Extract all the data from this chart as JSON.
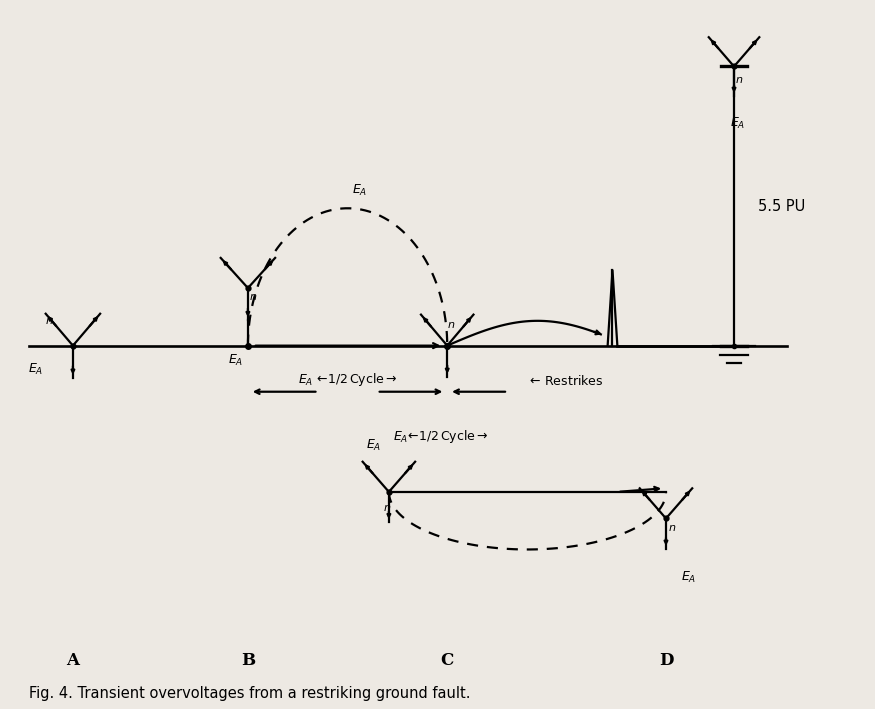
{
  "bg_color": "#ede9e3",
  "fig_width": 8.75,
  "fig_height": 7.09,
  "caption": "Fig. 4. Transient overvoltages from a restriking ground fault.",
  "labels_bottom": [
    [
      "A",
      0.75
    ],
    [
      "B",
      2.55
    ],
    [
      "C",
      4.6
    ],
    [
      "D",
      6.85
    ]
  ],
  "pu_label": "5.5 PU",
  "main_y": 4.1,
  "xlim": [
    0,
    9
  ],
  "ylim": [
    0,
    8
  ]
}
